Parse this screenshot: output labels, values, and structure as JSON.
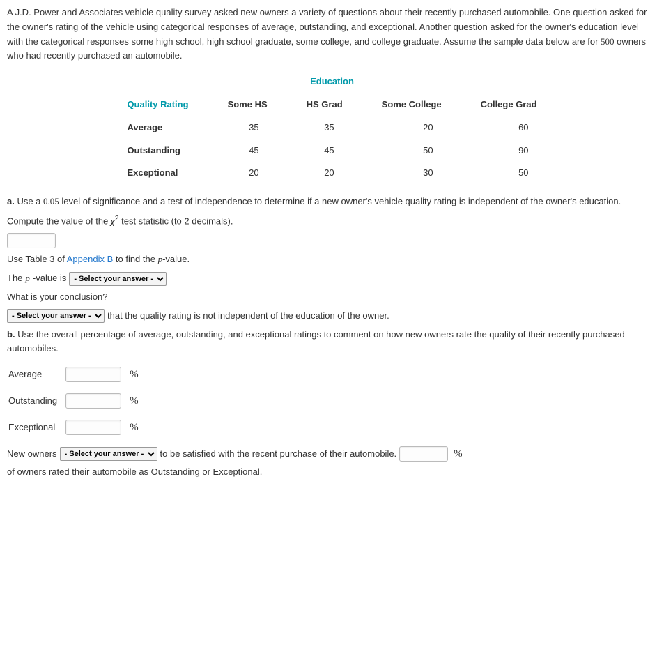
{
  "intro": "A J.D. Power and Associates vehicle quality survey asked new owners a variety of questions about their recently purchased automobile. One question asked for the owner's rating of the vehicle using categorical responses of average, outstanding, and exceptional. Another question asked for the owner's education level with the categorical responses some high school, high school graduate, some college, and college graduate. Assume the sample data below are for ",
  "intro_num": "500",
  "intro_tail": " owners who had recently purchased an automobile.",
  "table": {
    "super_header": "Education",
    "corner": "Quality Rating",
    "cols": [
      "Some HS",
      "HS Grad",
      "Some College",
      "College Grad"
    ],
    "rows": [
      {
        "label": "Average",
        "vals": [
          "35",
          "35",
          "20",
          "60"
        ]
      },
      {
        "label": "Outstanding",
        "vals": [
          "45",
          "45",
          "50",
          "90"
        ]
      },
      {
        "label": "Exceptional",
        "vals": [
          "20",
          "20",
          "30",
          "50"
        ]
      }
    ]
  },
  "partA": {
    "lead_a": "a.",
    "lead_text1": " Use a ",
    "alpha": "0.05",
    "lead_text2": " level of significance and a test of independence to determine if a new owner's vehicle quality rating is independent of the owner's education.",
    "compute_pre": "Compute the value of the ",
    "chi": "χ",
    "chi_sup": "2",
    "compute_post": " test statistic (to 2 decimals).",
    "use_table_pre": "Use Table 3 of ",
    "appendix": "Appendix B",
    "use_table_post": " to find the ",
    "pvar": "p",
    "use_table_tail": "-value.",
    "pvalue_pre": "The ",
    "pvalue_mid": "-value is ",
    "select_placeholder": "- Select your answer -",
    "conclusion_q": "What is your conclusion?",
    "conclusion_tail": " that the quality rating is not independent of the education of the owner."
  },
  "partB": {
    "lead_b": "b.",
    "text": " Use the overall percentage of average, outstanding, and exceptional ratings to comment on how new owners rate the quality of their recently purchased automobiles.",
    "rows": [
      "Average",
      "Outstanding",
      "Exceptional"
    ],
    "pct": "%",
    "final_pre": "New owners ",
    "final_mid": " to be satisfied with the recent purchase of their automobile. ",
    "final_pct": "%",
    "final_tail": " of owners rated their automobile as Outstanding or Exceptional."
  }
}
